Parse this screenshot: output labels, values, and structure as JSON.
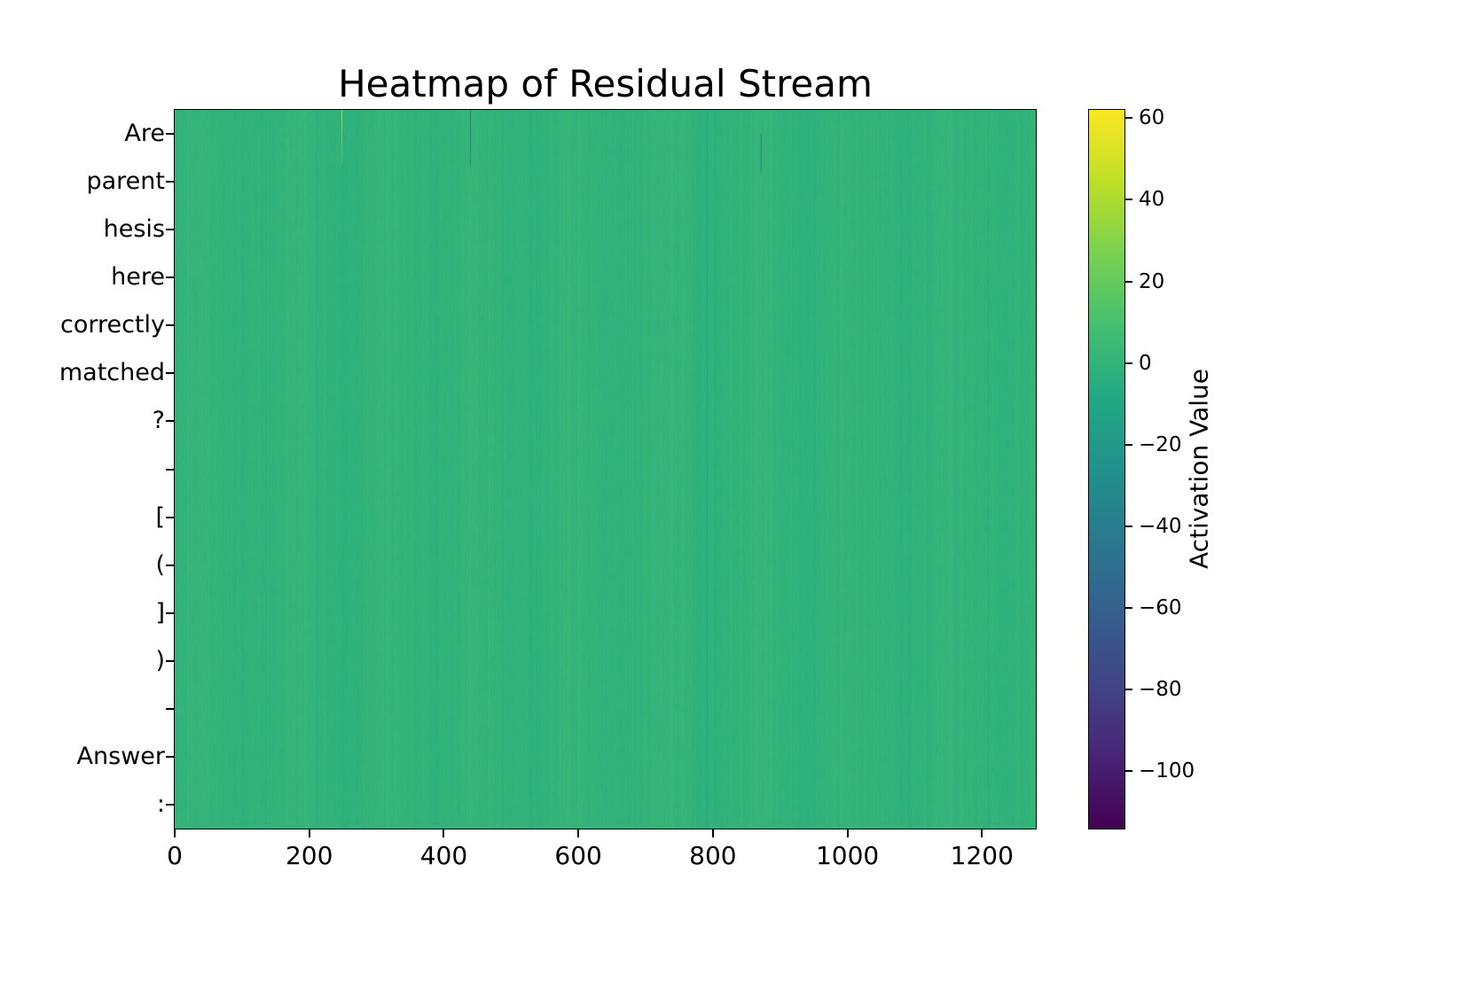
{
  "chart_data": {
    "type": "heatmap",
    "title": "Heatmap of Residual Stream",
    "xlabel": "",
    "ylabel": "",
    "x_range": [
      0,
      1280
    ],
    "x_ticks": [
      0,
      200,
      400,
      600,
      800,
      1000,
      1200
    ],
    "y_tokens": [
      "Are",
      "parent",
      "hesis",
      "here",
      "correctly",
      "matched",
      "?",
      "",
      "[",
      "(",
      "]",
      ")",
      "",
      "Answer",
      ":"
    ],
    "grid": false,
    "legend": false,
    "base_value": 0,
    "noise_amplitude": 3,
    "colorbar": {
      "label": "Activation Value",
      "ticks": [
        60,
        40,
        20,
        0,
        -20,
        -40,
        -60,
        -80,
        -100
      ],
      "vmin": -114,
      "vmax": 62
    },
    "colormap": {
      "name": "viridis",
      "stops": [
        "#440154",
        "#482475",
        "#414487",
        "#355f8d",
        "#2a788e",
        "#21918c",
        "#22a884",
        "#44bf70",
        "#7ad151",
        "#bddf26",
        "#fde725"
      ]
    },
    "anomalies": [
      {
        "x": 248,
        "row_start": 0,
        "row_end": 1.1,
        "value_start": 62,
        "value_end": 8,
        "mode": "set"
      },
      {
        "x": 439,
        "row_start": 0,
        "row_end": 1.2,
        "value_start": -66,
        "value_end": -35,
        "mode": "set"
      },
      {
        "x": 871,
        "row_start": 0.45,
        "row_end": 1.25,
        "value_start": -60,
        "value_end": -40,
        "mode": "set"
      },
      {
        "x": 439,
        "row_start": 0,
        "row_end": 15,
        "value": 5,
        "mode": "add"
      },
      {
        "x": 791,
        "row_start": 0,
        "row_end": 15,
        "value": -8,
        "mode": "add"
      }
    ]
  }
}
